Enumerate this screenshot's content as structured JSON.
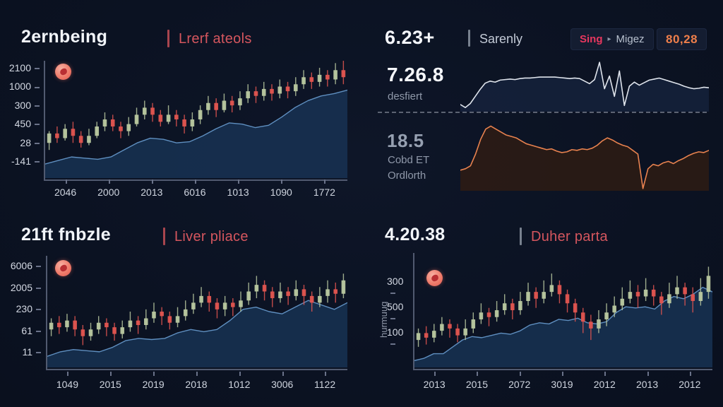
{
  "theme": {
    "bg": "#0b1222",
    "accent_red": "#d5565e",
    "accent_pink": "#e8375f",
    "accent_orange": "#ee7f4b",
    "candle_up": "#b9c8a0",
    "candle_down": "#e25550",
    "blue_line": "#5f8fc0",
    "blue_fill": "#17304f",
    "white_line": "#dfe4ec",
    "white_fill": "#15213a",
    "orange_line": "#e8824f",
    "orange_fill": "#2b1b15",
    "axis": "#515a70"
  },
  "panels": {
    "top_left": {
      "title": "2ernbeing",
      "subtitle": "Lrerf ateols"
    },
    "top_right": {
      "value": "6.23+",
      "label": "Sarenly",
      "badge_from": "Sing",
      "badge_arrow": "▸",
      "badge_to": "Migez",
      "badge_value": "80,28",
      "row1_value": "7.26.8",
      "row1_label": "desfiert",
      "row2_value": "18.5",
      "row2_label1": "Cobd ET",
      "row2_label2": "Ordlorth"
    },
    "bottom_left": {
      "title": "21ft fnbzle",
      "subtitle": "Liver pliace"
    },
    "bottom_right": {
      "title": "4.20.38",
      "subtitle": "Duher parta",
      "y_axis_label": "hurmuug"
    }
  },
  "chart_data": [
    {
      "id": "tl",
      "type": "candlestick",
      "title": "2ernbeing",
      "legend": "none",
      "grid": false,
      "ylim": [
        0,
        100
      ],
      "y_ticks": [
        "2100",
        "1000",
        "300",
        "450",
        "28",
        "-141"
      ],
      "x_ticks": [
        "2046",
        "2000",
        "2013",
        "6016",
        "1013",
        "1090",
        "1772"
      ],
      "area": [
        12,
        15,
        18,
        17,
        16,
        18,
        24,
        30,
        34,
        33,
        30,
        31,
        36,
        42,
        47,
        46,
        43,
        45,
        52,
        60,
        66,
        70,
        72,
        75
      ],
      "candles": [
        [
          30,
          38,
          24,
          40
        ],
        [
          38,
          34,
          30,
          44
        ],
        [
          34,
          42,
          32,
          46
        ],
        [
          42,
          36,
          30,
          48
        ],
        [
          36,
          30,
          26,
          40
        ],
        [
          30,
          36,
          28,
          42
        ],
        [
          36,
          44,
          34,
          48
        ],
        [
          44,
          50,
          40,
          56
        ],
        [
          50,
          44,
          40,
          54
        ],
        [
          44,
          40,
          34,
          48
        ],
        [
          40,
          46,
          36,
          52
        ],
        [
          46,
          54,
          44,
          60
        ],
        [
          54,
          60,
          50,
          66
        ],
        [
          60,
          54,
          48,
          64
        ],
        [
          54,
          48,
          44,
          58
        ],
        [
          48,
          54,
          46,
          62
        ],
        [
          54,
          50,
          44,
          58
        ],
        [
          50,
          44,
          38,
          54
        ],
        [
          44,
          50,
          40,
          56
        ],
        [
          50,
          58,
          46,
          62
        ],
        [
          58,
          64,
          54,
          70
        ],
        [
          64,
          58,
          52,
          68
        ],
        [
          58,
          66,
          56,
          72
        ],
        [
          66,
          62,
          56,
          70
        ],
        [
          62,
          68,
          58,
          74
        ],
        [
          68,
          74,
          64,
          80
        ],
        [
          74,
          70,
          64,
          78
        ],
        [
          70,
          76,
          66,
          82
        ],
        [
          76,
          72,
          66,
          80
        ],
        [
          72,
          78,
          68,
          84
        ],
        [
          78,
          74,
          68,
          82
        ],
        [
          74,
          80,
          70,
          86
        ],
        [
          80,
          86,
          76,
          92
        ],
        [
          86,
          82,
          76,
          90
        ],
        [
          82,
          88,
          78,
          94
        ],
        [
          88,
          84,
          78,
          92
        ],
        [
          84,
          92,
          80,
          98
        ],
        [
          92,
          86,
          80,
          100
        ]
      ]
    },
    {
      "id": "tr_white",
      "type": "area",
      "label": "7.26.8 desfiert",
      "ylim": [
        0,
        100
      ],
      "values": [
        14,
        8,
        16,
        30,
        44,
        56,
        60,
        58,
        62,
        63,
        64,
        63,
        65,
        66,
        66,
        67,
        68,
        68,
        68,
        68,
        67,
        66,
        65,
        66,
        65,
        60,
        55,
        63,
        97,
        45,
        70,
        30,
        80,
        12,
        50,
        58,
        52,
        57,
        62,
        64,
        66,
        63,
        60,
        57,
        54,
        50,
        47,
        45,
        46,
        48,
        47
      ]
    },
    {
      "id": "tr_orange",
      "type": "area",
      "label": "18.5 Cobd ET Ordlorth",
      "ylim": [
        0,
        100
      ],
      "values": [
        28,
        30,
        34,
        50,
        70,
        84,
        88,
        84,
        80,
        76,
        74,
        72,
        68,
        64,
        62,
        60,
        58,
        56,
        57,
        54,
        52,
        53,
        56,
        55,
        57,
        56,
        58,
        62,
        68,
        72,
        69,
        65,
        62,
        60,
        55,
        50,
        3,
        30,
        36,
        34,
        38,
        40,
        37,
        41,
        44,
        48,
        51,
        53,
        52,
        55
      ]
    },
    {
      "id": "bl",
      "type": "candlestick",
      "title": "21ft fnbzle",
      "grid": false,
      "ylim": [
        0,
        100
      ],
      "y_ticks": [
        "6006",
        "2005",
        "230",
        "61",
        "11"
      ],
      "x_ticks": [
        "1049",
        "2015",
        "2019",
        "2018",
        "1012",
        "3006",
        "1122"
      ],
      "area": [
        10,
        14,
        16,
        15,
        14,
        18,
        24,
        26,
        25,
        26,
        31,
        34,
        32,
        34,
        42,
        52,
        54,
        50,
        48,
        54,
        60,
        56,
        52,
        58
      ],
      "candles": [
        [
          34,
          40,
          28,
          44
        ],
        [
          40,
          36,
          30,
          46
        ],
        [
          36,
          42,
          32,
          48
        ],
        [
          42,
          34,
          28,
          46
        ],
        [
          34,
          28,
          20,
          38
        ],
        [
          28,
          34,
          24,
          40
        ],
        [
          34,
          40,
          30,
          46
        ],
        [
          40,
          36,
          28,
          44
        ],
        [
          36,
          30,
          24,
          40
        ],
        [
          30,
          36,
          26,
          42
        ],
        [
          36,
          42,
          32,
          50
        ],
        [
          42,
          38,
          30,
          46
        ],
        [
          38,
          44,
          34,
          52
        ],
        [
          44,
          50,
          40,
          58
        ],
        [
          50,
          46,
          38,
          54
        ],
        [
          46,
          40,
          34,
          50
        ],
        [
          40,
          46,
          36,
          54
        ],
        [
          46,
          52,
          42,
          60
        ],
        [
          52,
          58,
          48,
          66
        ],
        [
          58,
          64,
          54,
          72
        ],
        [
          64,
          58,
          50,
          68
        ],
        [
          58,
          52,
          44,
          62
        ],
        [
          52,
          58,
          46,
          64
        ],
        [
          58,
          54,
          46,
          62
        ],
        [
          54,
          60,
          50,
          68
        ],
        [
          60,
          68,
          56,
          76
        ],
        [
          68,
          74,
          62,
          82
        ],
        [
          74,
          68,
          60,
          78
        ],
        [
          68,
          62,
          54,
          72
        ],
        [
          62,
          68,
          58,
          76
        ],
        [
          68,
          64,
          56,
          72
        ],
        [
          64,
          70,
          60,
          78
        ],
        [
          70,
          64,
          56,
          74
        ],
        [
          64,
          58,
          50,
          68
        ],
        [
          58,
          64,
          54,
          72
        ],
        [
          64,
          70,
          58,
          78
        ],
        [
          70,
          66,
          58,
          76
        ],
        [
          66,
          78,
          62,
          84
        ]
      ]
    },
    {
      "id": "br",
      "type": "candlestick",
      "title": "4.20.38",
      "grid": false,
      "ylim": [
        0,
        100
      ],
      "y_axis_label": "hurmuug",
      "y_ticks": [
        "300",
        "500",
        "100"
      ],
      "x_ticks": [
        "2013",
        "2015",
        "2072",
        "3019",
        "2012",
        "2013",
        "2012"
      ],
      "area": [
        6,
        8,
        12,
        12,
        18,
        24,
        27,
        26,
        28,
        30,
        29,
        32,
        37,
        39,
        38,
        42,
        41,
        43,
        39,
        38,
        40,
        48,
        53,
        52,
        53,
        51,
        58,
        62,
        60,
        64,
        70,
        66
      ],
      "candles": [
        [
          24,
          30,
          18,
          34
        ],
        [
          30,
          26,
          20,
          36
        ],
        [
          26,
          32,
          22,
          38
        ],
        [
          32,
          38,
          28,
          44
        ],
        [
          38,
          34,
          26,
          42
        ],
        [
          34,
          28,
          22,
          38
        ],
        [
          28,
          34,
          24,
          42
        ],
        [
          34,
          42,
          30,
          48
        ],
        [
          42,
          48,
          38,
          56
        ],
        [
          48,
          44,
          36,
          52
        ],
        [
          44,
          50,
          40,
          58
        ],
        [
          50,
          56,
          46,
          64
        ],
        [
          56,
          50,
          42,
          60
        ],
        [
          50,
          58,
          46,
          66
        ],
        [
          58,
          66,
          54,
          74
        ],
        [
          66,
          60,
          52,
          70
        ],
        [
          60,
          66,
          56,
          76
        ],
        [
          66,
          72,
          62,
          82
        ],
        [
          72,
          64,
          56,
          76
        ],
        [
          64,
          56,
          48,
          68
        ],
        [
          56,
          48,
          40,
          60
        ],
        [
          48,
          40,
          30,
          52
        ],
        [
          40,
          34,
          24,
          46
        ],
        [
          34,
          42,
          30,
          50
        ],
        [
          42,
          48,
          36,
          56
        ],
        [
          48,
          54,
          44,
          62
        ],
        [
          54,
          60,
          50,
          70
        ],
        [
          60,
          66,
          56,
          76
        ],
        [
          66,
          62,
          52,
          72
        ],
        [
          62,
          68,
          58,
          78
        ],
        [
          68,
          62,
          54,
          72
        ],
        [
          62,
          56,
          46,
          66
        ],
        [
          56,
          64,
          52,
          74
        ],
        [
          64,
          70,
          60,
          80
        ],
        [
          70,
          64,
          54,
          74
        ],
        [
          64,
          58,
          48,
          70
        ],
        [
          58,
          66,
          54,
          78
        ],
        [
          66,
          80,
          60,
          88
        ]
      ]
    }
  ]
}
